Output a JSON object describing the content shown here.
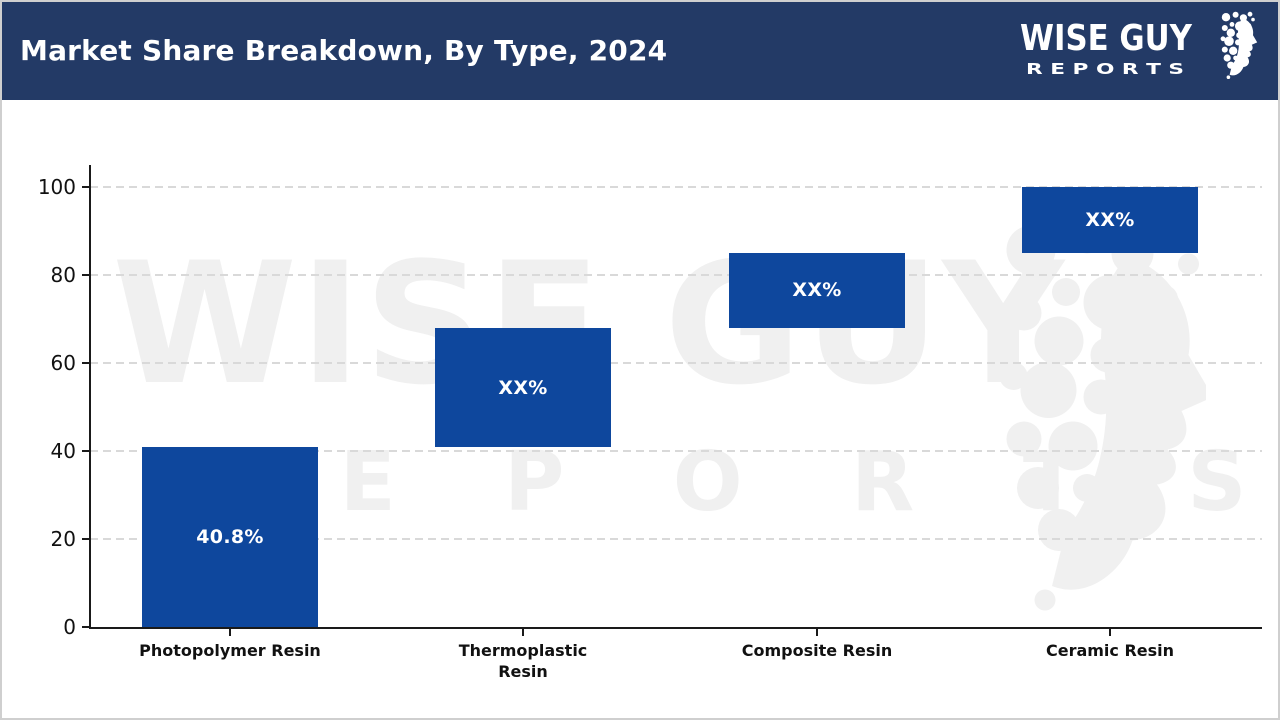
{
  "header": {
    "title": "Market Share Breakdown, By Type, 2024",
    "logo": {
      "line1": "WISE GUY",
      "line2": "R E P O R T S"
    }
  },
  "watermark": {
    "line1": "WISE GUY",
    "line2": "R E P O R T S"
  },
  "colors": {
    "header_bg": "#233A66",
    "bar_fill": "#0E479D",
    "bar_label": "#FFFFFF",
    "grid_line": "#D9D9D9",
    "axis_line": "#1A1A1A",
    "tick_text": "#111111",
    "watermark_gray": "#F0F0F0",
    "page_border": "#CFCFCF",
    "title_text": "#FFFFFF"
  },
  "chart_data": {
    "type": "bar",
    "variant": "stacked-waterfall",
    "title": "Market Share Breakdown, By Type, 2024",
    "xlabel": "",
    "ylabel": "",
    "ylim": [
      0,
      105
    ],
    "yticks": [
      0,
      20,
      40,
      60,
      80,
      100
    ],
    "grid": "horizontal-dashed",
    "legend": "none",
    "categories": [
      "Photopolymer Resin",
      "Thermoplastic Resin",
      "Composite Resin",
      "Ceramic Resin"
    ],
    "category_label_lines": [
      [
        "Photopolymer Resin"
      ],
      [
        "Thermoplastic",
        "Resin"
      ],
      [
        "Composite Resin"
      ],
      [
        "Ceramic Resin"
      ]
    ],
    "bars": [
      {
        "category": "Photopolymer Resin",
        "start": 0,
        "end": 40.8,
        "label": "40.8%"
      },
      {
        "category": "Thermoplastic Resin",
        "start": 40.8,
        "end": 68,
        "label": "XX%"
      },
      {
        "category": "Composite Resin",
        "start": 68,
        "end": 85,
        "label": "XX%"
      },
      {
        "category": "Ceramic Resin",
        "start": 85,
        "end": 100,
        "label": "XX%"
      }
    ]
  }
}
